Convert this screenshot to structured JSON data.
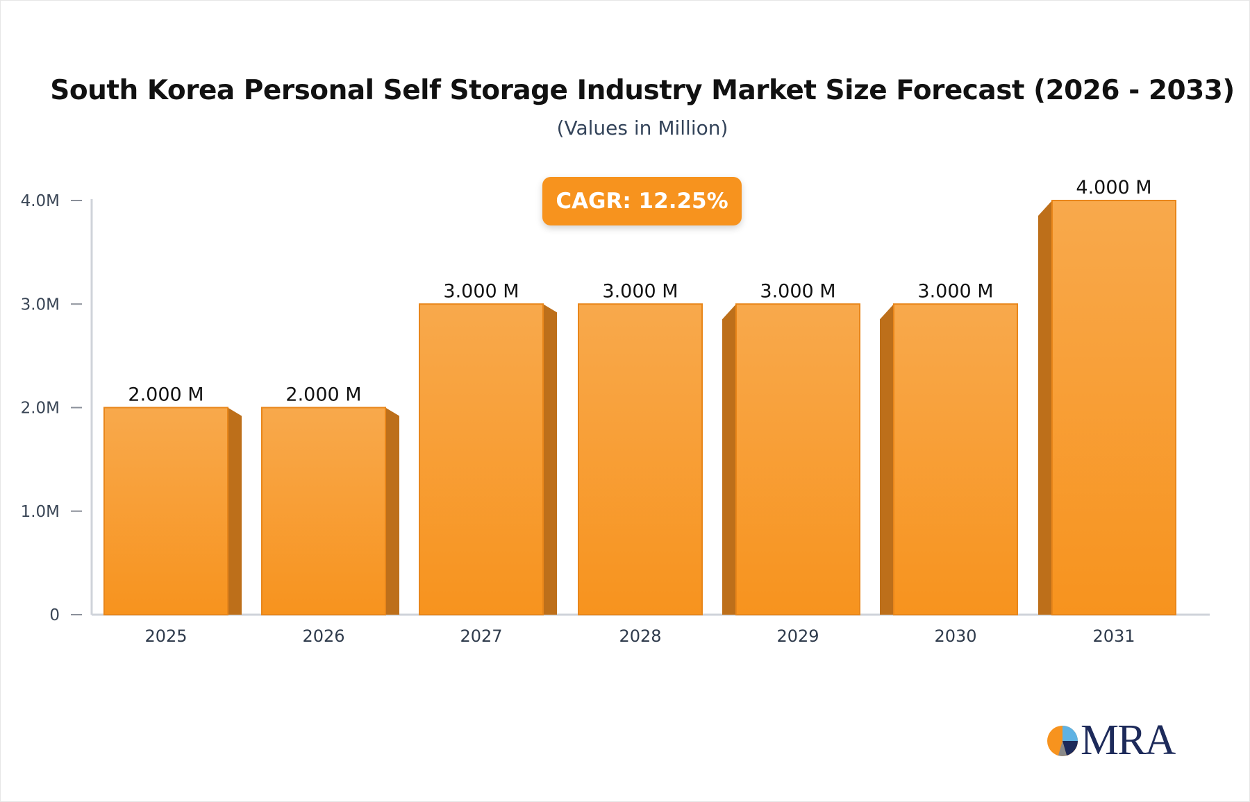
{
  "chart_data": {
    "type": "bar",
    "title": "South Korea Personal Self Storage Industry Market Size Forecast (2026 - 2033)",
    "subtitle": "(Values in Million)",
    "categories": [
      "2025",
      "2026",
      "2027",
      "2028",
      "2029",
      "2030",
      "2031"
    ],
    "values": [
      2,
      2,
      3,
      3,
      3,
      3,
      4
    ],
    "data_labels": [
      "2.000 M",
      "2.000 M",
      "3.000 M",
      "3.000 M",
      "3.000 M",
      "3.000 M",
      "4.000 M"
    ],
    "yticks": [
      0,
      1,
      2,
      3,
      4
    ],
    "ytick_labels": [
      "0",
      "1.0M",
      "2.0M",
      "3.0M",
      "4.0M"
    ],
    "ylim": [
      0,
      4
    ],
    "xlabel": "",
    "ylabel": "",
    "grid": false,
    "bar_color": "#f7931e",
    "bar_side_color": "#bd6f1a",
    "annotation": "CAGR: 12.25%"
  },
  "logo": {
    "text": "MRA"
  }
}
